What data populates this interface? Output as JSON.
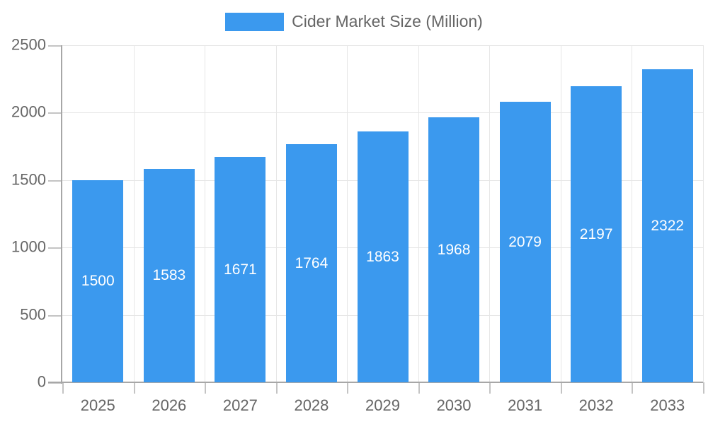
{
  "legend": {
    "label": "Cider Market Size (Million)",
    "position": "top"
  },
  "chart_data": {
    "type": "bar",
    "title": "Cider Market Size (Million)",
    "series_name": "Cider Market Size (Million)",
    "categories": [
      "2025",
      "2026",
      "2027",
      "2028",
      "2029",
      "2030",
      "2031",
      "2032",
      "2033"
    ],
    "values": [
      1500,
      1583,
      1671,
      1764,
      1863,
      1968,
      2079,
      2197,
      2322
    ],
    "bar_labels": [
      "1500",
      "1583",
      "1671",
      "1764",
      "1863",
      "1968",
      "2079",
      "2197",
      "2322"
    ],
    "xlabel": "",
    "ylabel": "",
    "ylim": [
      0,
      2500
    ],
    "yticks": [
      0,
      500,
      1000,
      1500,
      2000,
      2500
    ],
    "ytick_labels": [
      "0",
      "500",
      "1000",
      "1500",
      "2000",
      "2500"
    ],
    "grid": true,
    "legend_position": "top",
    "colors": {
      "bar": "#3B99EE",
      "bar_label_text": "#FFFFFF",
      "axis_text": "#666666",
      "legend_text": "#666666",
      "gridline": "#E6E6E6",
      "axis_line": "#A7A7A7",
      "tick": "#C4C4C4",
      "background": "#FFFFFF"
    }
  }
}
